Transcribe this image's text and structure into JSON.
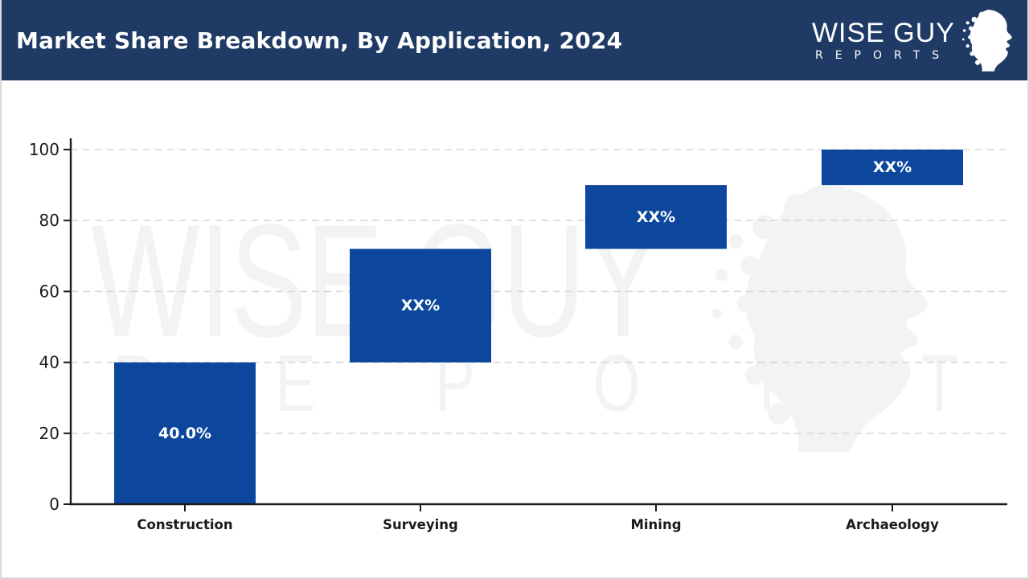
{
  "header": {
    "title": "Market Share Breakdown, By Application, 2024",
    "logo": {
      "line1": "WISE GUY",
      "line2": "REPORTS"
    }
  },
  "watermark": {
    "line1": "WISE GUY",
    "line2": "R E P O R T S"
  },
  "colors": {
    "header_bg": "#203a66",
    "bar": "#0c479d",
    "grid": "#d9d9d9",
    "axis": "#1a1a1a",
    "tick_text": "#1a1a1a",
    "bar_label": "#ffffff",
    "watermark": "#f2f3f5",
    "border": "#d9d9d9"
  },
  "chart_data": {
    "type": "bar",
    "variant": "waterfall",
    "title": "Market Share Breakdown, By Application, 2024",
    "categories": [
      "Construction",
      "Surveying",
      "Mining",
      "Archaeology"
    ],
    "bars": [
      {
        "category": "Construction",
        "start": 0,
        "end": 40,
        "label": "40.0%"
      },
      {
        "category": "Surveying",
        "start": 40,
        "end": 72,
        "label": "XX%"
      },
      {
        "category": "Mining",
        "start": 72,
        "end": 90,
        "label": "XX%"
      },
      {
        "category": "Archaeology",
        "start": 90,
        "end": 100,
        "label": "XX%"
      }
    ],
    "y_ticks": [
      0,
      20,
      40,
      60,
      80,
      100
    ],
    "ylim": [
      0,
      105
    ],
    "xlabel": "",
    "ylabel": "",
    "legend": "none",
    "grid": "horizontal-dashed"
  }
}
